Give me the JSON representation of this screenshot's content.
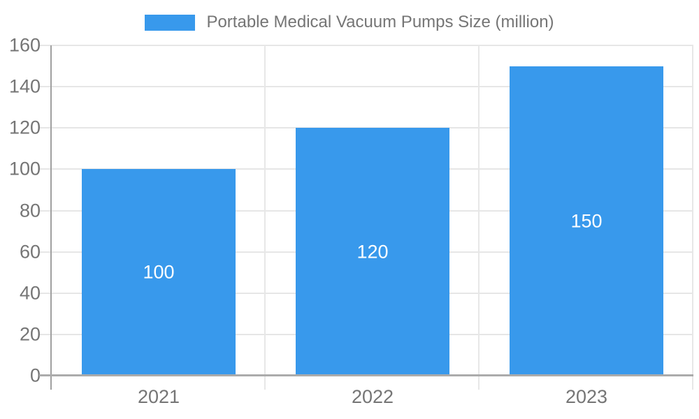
{
  "legend": {
    "label": "Portable Medical Vacuum Pumps Size (million)"
  },
  "colors": {
    "bar": "#3899EC",
    "bar_label": "#ffffff",
    "axis_text": "#757575",
    "gridline": "#e6e6e6",
    "separator": "#e7e7e7",
    "y_axis_line": "#a0a0a0",
    "x_axis_line": "#ababab"
  },
  "chart_data": {
    "type": "bar",
    "title": "Portable Medical Vacuum Pumps Size (million)",
    "categories": [
      "2021",
      "2022",
      "2023"
    ],
    "values": [
      100,
      120,
      150
    ],
    "bar_labels": [
      "100",
      "120",
      "150"
    ],
    "xlabel": "",
    "ylabel": "",
    "ylim": [
      0,
      160
    ],
    "yticks": [
      0,
      20,
      40,
      60,
      80,
      100,
      120,
      140,
      160
    ],
    "grid": true,
    "legend_position": "top",
    "series": [
      {
        "name": "Portable Medical Vacuum Pumps Size (million)",
        "values": [
          100,
          120,
          150
        ]
      }
    ]
  }
}
